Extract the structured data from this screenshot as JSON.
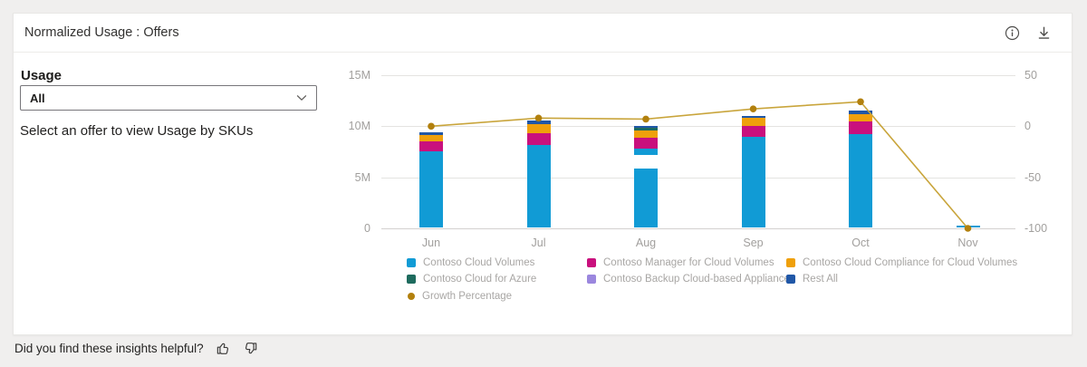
{
  "header": {
    "title": "Normalized Usage : Offers"
  },
  "filters": {
    "usage_label": "Usage",
    "usage_value": "All",
    "hint": "Select an offer to view Usage by SKUs"
  },
  "footer": {
    "question": "Did you find these insights helpful?"
  },
  "chart_data": {
    "type": "bar",
    "subtype": "stacked-bars-with-growth-line",
    "categories": [
      "Jun",
      "Jul",
      "Aug",
      "Sep",
      "Oct",
      "Nov"
    ],
    "unit": "millions",
    "left_axis": {
      "ticks": [
        15,
        10,
        5,
        0
      ],
      "tick_labels": [
        "15M",
        "10M",
        "5M",
        "0"
      ],
      "min": 0,
      "max": 15
    },
    "right_axis": {
      "ticks": [
        "50",
        "0",
        "-50",
        "-100"
      ],
      "min": -100,
      "max": 50
    },
    "series": [
      {
        "key": "volumes",
        "name": "Contoso Cloud Volumes",
        "color": "#119bd5"
      },
      {
        "key": "manager",
        "name": "Contoso Manager for Cloud Volumes",
        "color": "#c9107d"
      },
      {
        "key": "compliance",
        "name": "Contoso Cloud Compliance for Cloud Volumes",
        "color": "#efa00c"
      },
      {
        "key": "azure",
        "name": "Contoso Cloud for Azure",
        "color": "#1e6b5e"
      },
      {
        "key": "backup",
        "name": "Contoso Backup Cloud-based Appliance",
        "color": "#9b87de"
      },
      {
        "key": "restall",
        "name": "Rest All",
        "color": "#2057a7"
      }
    ],
    "bars": [
      {
        "category": "Jun",
        "total": 9.3,
        "segments": [
          [
            "volumes",
            7.5
          ],
          [
            "manager",
            0.9
          ],
          [
            "compliance",
            0.7
          ],
          [
            "restall",
            0.2
          ]
        ]
      },
      {
        "category": "Jul",
        "total": 10.45,
        "segments": [
          [
            "volumes",
            8.1
          ],
          [
            "manager",
            1.15
          ],
          [
            "compliance",
            0.9
          ],
          [
            "restall",
            0.3
          ]
        ]
      },
      {
        "category": "Aug",
        "total": 9.95,
        "segments": [
          [
            "volumes",
            5.8
          ],
          [
            "gap",
            1.3
          ],
          [
            "volumes",
            0.6
          ],
          [
            "manager",
            1.05
          ],
          [
            "compliance",
            0.75
          ],
          [
            "azure",
            0.25
          ],
          [
            "restall",
            0.2
          ]
        ]
      },
      {
        "category": "Sep",
        "total": 10.9,
        "segments": [
          [
            "volumes",
            8.85
          ],
          [
            "manager",
            1.05
          ],
          [
            "compliance",
            0.8
          ],
          [
            "restall",
            0.2
          ]
        ]
      },
      {
        "category": "Oct",
        "total": 11.45,
        "segments": [
          [
            "volumes",
            9.1
          ],
          [
            "manager",
            1.3
          ],
          [
            "compliance",
            0.7
          ],
          [
            "restall",
            0.35
          ]
        ]
      },
      {
        "category": "Nov",
        "total": 0.15,
        "segments": [
          [
            "volumes",
            0.15
          ]
        ]
      }
    ],
    "line": {
      "name": "Growth Percentage",
      "values": [
        0,
        8,
        7,
        17,
        24,
        -100
      ],
      "color": "#c9a53c",
      "dot_color": "#b2800d"
    },
    "legend_order": [
      "volumes",
      "manager",
      "compliance",
      "azure",
      "backup",
      "restall",
      "growth"
    ]
  }
}
